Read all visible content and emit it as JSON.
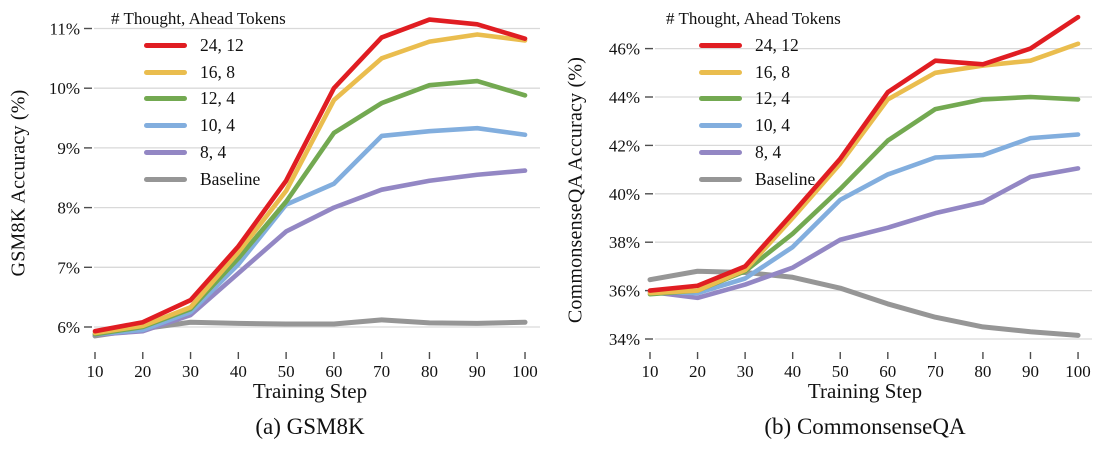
{
  "legend": {
    "title": "# Thought, Ahead Tokens"
  },
  "chart_data": [
    {
      "type": "line",
      "title": "(a) GSM8K",
      "xlabel": "Training Step",
      "ylabel": "GSM8K Accuracy (%)",
      "x": [
        10,
        20,
        30,
        40,
        50,
        60,
        70,
        80,
        90,
        100
      ],
      "xtick_labels": [
        "10",
        "20",
        "30",
        "40",
        "50",
        "60",
        "70",
        "80",
        "90",
        "100"
      ],
      "yticks": [
        6,
        7,
        8,
        9,
        10,
        11
      ],
      "ytick_labels": [
        "6%",
        "7%",
        "8%",
        "9%",
        "10%",
        "11%"
      ],
      "ylim": [
        5.7,
        11.4
      ],
      "grid": "horizontal",
      "legend_position": "upper-left-inside",
      "series": [
        {
          "name": "24, 12",
          "color": "#e01d22",
          "values": [
            5.93,
            6.08,
            6.45,
            7.35,
            8.45,
            10.0,
            10.85,
            11.15,
            11.07,
            10.83
          ]
        },
        {
          "name": "16, 8",
          "color": "#eabd4e",
          "values": [
            5.9,
            6.02,
            6.33,
            7.25,
            8.28,
            9.8,
            10.5,
            10.78,
            10.9,
            10.8
          ]
        },
        {
          "name": "12, 4",
          "color": "#73a951",
          "values": [
            5.88,
            6.0,
            6.3,
            7.15,
            8.1,
            9.25,
            9.75,
            10.05,
            10.12,
            9.88
          ]
        },
        {
          "name": "10, 4",
          "color": "#82aede",
          "values": [
            5.88,
            5.95,
            6.25,
            7.05,
            8.05,
            8.4,
            9.2,
            9.28,
            9.33,
            9.22
          ]
        },
        {
          "name": "8, 4",
          "color": "#9387c4",
          "values": [
            5.87,
            5.93,
            6.2,
            6.9,
            7.6,
            8.0,
            8.3,
            8.45,
            8.55,
            8.62
          ]
        },
        {
          "name": "Baseline",
          "color": "#969696",
          "values": [
            5.85,
            5.97,
            6.08,
            6.06,
            6.05,
            6.05,
            6.12,
            6.07,
            6.06,
            6.08
          ]
        }
      ]
    },
    {
      "type": "line",
      "title": "(b) CommonsenseQA",
      "xlabel": "Training Step",
      "ylabel": "CommonsenseQA Accuracy (%)",
      "x": [
        10,
        20,
        30,
        40,
        50,
        60,
        70,
        80,
        90,
        100
      ],
      "xtick_labels": [
        "10",
        "20",
        "30",
        "40",
        "50",
        "60",
        "70",
        "80",
        "90",
        "100"
      ],
      "yticks": [
        34,
        36,
        38,
        40,
        42,
        44,
        46
      ],
      "ytick_labels": [
        "34%",
        "36%",
        "38%",
        "40%",
        "42%",
        "44%",
        "46%"
      ],
      "ylim": [
        33.5,
        47.7
      ],
      "grid": "horizontal",
      "legend_position": "upper-left-inside",
      "series": [
        {
          "name": "24, 12",
          "color": "#e01d22",
          "values": [
            36.0,
            36.2,
            37.0,
            39.2,
            41.45,
            44.2,
            45.5,
            45.35,
            46.0,
            47.3
          ]
        },
        {
          "name": "16, 8",
          "color": "#eabd4e",
          "values": [
            35.9,
            36.0,
            36.85,
            39.0,
            41.25,
            43.9,
            45.0,
            45.3,
            45.5,
            46.2
          ]
        },
        {
          "name": "12, 4",
          "color": "#73a951",
          "values": [
            35.85,
            36.0,
            36.8,
            38.35,
            40.2,
            42.2,
            43.5,
            43.9,
            44.0,
            43.9
          ]
        },
        {
          "name": "10, 4",
          "color": "#82aede",
          "values": [
            35.95,
            35.9,
            36.5,
            37.8,
            39.75,
            40.8,
            41.5,
            41.6,
            42.3,
            42.45
          ]
        },
        {
          "name": "8, 4",
          "color": "#9387c4",
          "values": [
            35.95,
            35.7,
            36.25,
            36.95,
            38.1,
            38.6,
            39.2,
            39.65,
            40.7,
            41.05
          ]
        },
        {
          "name": "Baseline",
          "color": "#969696",
          "values": [
            36.45,
            36.8,
            36.75,
            36.55,
            36.1,
            35.45,
            34.9,
            34.5,
            34.3,
            34.15
          ]
        }
      ]
    }
  ]
}
